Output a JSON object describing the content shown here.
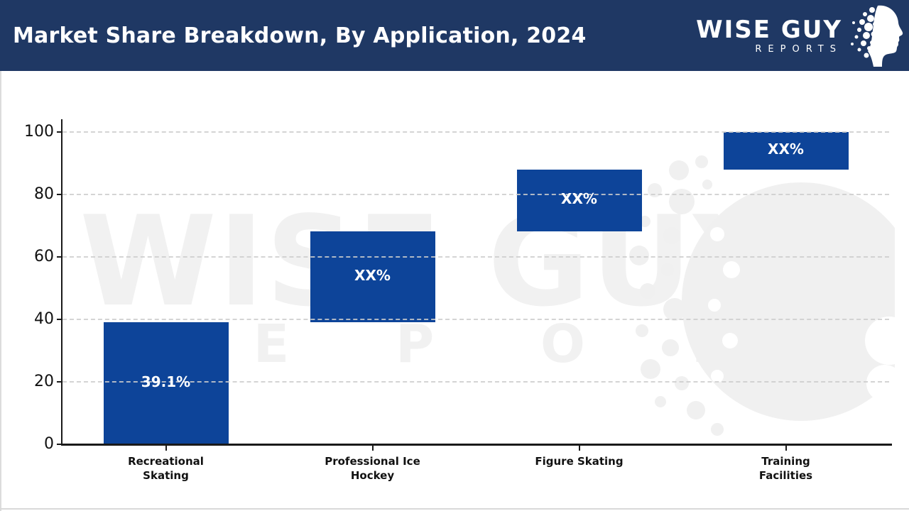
{
  "header": {
    "title": "Market Share Breakdown, By Application, 2024",
    "bg_color": "#1f3864",
    "logo": {
      "line1": "WISE GUY",
      "line2": "REPORTS"
    }
  },
  "watermark": {
    "line1": "WISE GUY.",
    "line2": "REPORTS"
  },
  "chart_data": {
    "type": "bar",
    "subtype": "waterfall",
    "title": "Market Share Breakdown, By Application, 2024",
    "categories": [
      "Recreational Skating",
      "Professional Ice Hockey",
      "Figure Skating",
      "Training Facilities"
    ],
    "category_label_lines": [
      [
        "Recreational",
        "Skating"
      ],
      [
        "Professional Ice",
        "Hockey"
      ],
      [
        "Figure Skating"
      ],
      [
        "Training",
        "Facilities"
      ]
    ],
    "segments": [
      {
        "category": "Recreational Skating",
        "start": 0,
        "end": 39.1,
        "value": 39.1,
        "label": "39.1%"
      },
      {
        "category": "Professional Ice Hockey",
        "start": 39.1,
        "end": 68.2,
        "value": 29.1,
        "label": "XX%"
      },
      {
        "category": "Figure Skating",
        "start": 68.2,
        "end": 88.0,
        "value": 19.8,
        "label": "XX%"
      },
      {
        "category": "Training Facilities",
        "start": 88.0,
        "end": 100.0,
        "value": 12.0,
        "label": "XX%"
      }
    ],
    "yticks": [
      0,
      20,
      40,
      60,
      80,
      100
    ],
    "ylim": [
      0,
      104
    ],
    "xlabel": "",
    "ylabel": "",
    "bar_color": "#0d4499",
    "grid": true,
    "grid_style": "dashed",
    "legend": false
  }
}
